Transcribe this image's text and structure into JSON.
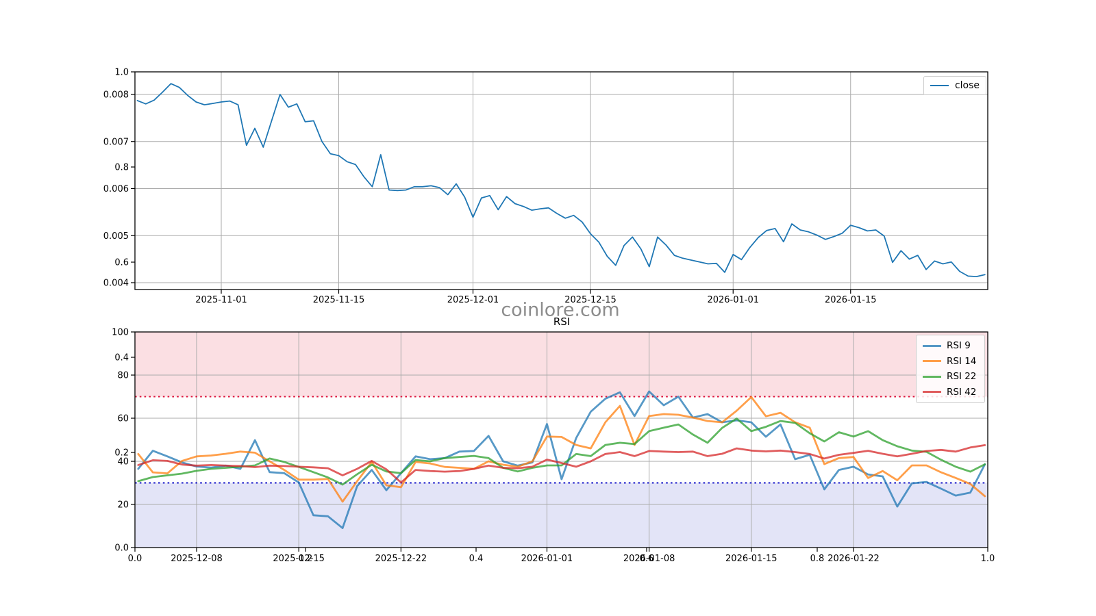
{
  "watermark": "coinlore.com",
  "colors": {
    "close_line": "#1f77b4",
    "rsi9_line": "#1f77b4",
    "rsi14_line": "#ff7f0e",
    "rsi22_line": "#2ca02c",
    "rsi42_line": "#d62728",
    "grid": "#ababab",
    "spine": "#000000",
    "overbought_dotted_line": "#dc143c",
    "oversold_dotted_line": "#1414c8",
    "overbought_band": "#fbdfe3",
    "oversold_band": "#e3e4f7",
    "watermark_text": "#8c8c8c"
  },
  "figure_axis": {
    "y_tick_labels": [
      "1.0",
      "0.8",
      "0.6",
      "0.4",
      "0.2",
      "0.0"
    ],
    "x_tick_labels": [
      "0.0",
      "0.2",
      "0.4",
      "0.6",
      "0.8",
      "1.0"
    ]
  },
  "price_chart": {
    "legend_label": "close",
    "y_tick_labels": [
      "0.008",
      "0.007",
      "0.006",
      "0.005",
      "0.004"
    ],
    "x_tick_labels": [
      "2025-11-01",
      "2025-11-15",
      "2025-12-01",
      "2025-12-15",
      "2026-01-01",
      "2026-01-15"
    ]
  },
  "rsi_chart": {
    "title": "RSI",
    "legend_labels": [
      "RSI 9",
      "RSI 14",
      "RSI 22",
      "RSI 42"
    ],
    "y_tick_labels": [
      "100",
      "80",
      "60",
      "40",
      "20"
    ],
    "x_tick_labels": [
      "2025-12-08",
      "2025-12-15",
      "2025-12-22",
      "2026-01-01",
      "2026-01-08",
      "2026-01-15",
      "2026-01-22"
    ],
    "overbought_level": 70,
    "oversold_level": 30
  },
  "chart_data": [
    {
      "type": "line",
      "title": "",
      "ylabel": "",
      "xlabel": "",
      "legend_position": "upper right",
      "grid": true,
      "ylim": [
        0.00386,
        0.00848
      ],
      "y_ticks": [
        0.008,
        0.007,
        0.006,
        0.005,
        0.004
      ],
      "x_ticks": [
        "2025-11-01",
        "2025-11-15",
        "2025-12-01",
        "2025-12-15",
        "2026-01-01",
        "2026-01-15"
      ],
      "x": [
        "2025-10-22",
        "2025-10-23",
        "2025-10-24",
        "2025-10-25",
        "2025-10-26",
        "2025-10-27",
        "2025-10-28",
        "2025-10-29",
        "2025-10-30",
        "2025-10-31",
        "2025-11-01",
        "2025-11-02",
        "2025-11-03",
        "2025-11-04",
        "2025-11-05",
        "2025-11-06",
        "2025-11-07",
        "2025-11-08",
        "2025-11-09",
        "2025-11-10",
        "2025-11-11",
        "2025-11-12",
        "2025-11-13",
        "2025-11-14",
        "2025-11-15",
        "2025-11-16",
        "2025-11-17",
        "2025-11-18",
        "2025-11-19",
        "2025-11-20",
        "2025-11-21",
        "2025-11-22",
        "2025-11-23",
        "2025-11-24",
        "2025-11-25",
        "2025-11-26",
        "2025-11-27",
        "2025-11-28",
        "2025-11-29",
        "2025-11-30",
        "2025-12-01",
        "2025-12-02",
        "2025-12-03",
        "2025-12-04",
        "2025-12-05",
        "2025-12-06",
        "2025-12-07",
        "2025-12-08",
        "2025-12-09",
        "2025-12-10",
        "2025-12-11",
        "2025-12-12",
        "2025-12-13",
        "2025-12-14",
        "2025-12-15",
        "2025-12-16",
        "2025-12-17",
        "2025-12-18",
        "2025-12-19",
        "2025-12-20",
        "2025-12-21",
        "2025-12-22",
        "2025-12-23",
        "2025-12-24",
        "2025-12-25",
        "2025-12-26",
        "2025-12-27",
        "2025-12-28",
        "2025-12-29",
        "2025-12-30",
        "2025-12-31",
        "2026-01-01",
        "2026-01-02",
        "2026-01-03",
        "2026-01-04",
        "2026-01-05",
        "2026-01-06",
        "2026-01-07",
        "2026-01-08",
        "2026-01-09",
        "2026-01-10",
        "2026-01-11",
        "2026-01-12",
        "2026-01-13",
        "2026-01-14",
        "2026-01-15",
        "2026-01-16",
        "2026-01-17",
        "2026-01-18",
        "2026-01-19",
        "2026-01-20",
        "2026-01-21",
        "2026-01-22",
        "2026-01-23",
        "2026-01-24",
        "2026-01-25",
        "2026-01-26",
        "2026-01-27",
        "2026-01-28",
        "2026-01-29",
        "2026-01-30",
        "2026-01-31"
      ],
      "series": [
        {
          "name": "close",
          "color": "#1f77b4",
          "values": [
            0.00787,
            0.0078,
            0.00788,
            0.00805,
            0.00823,
            0.00815,
            0.00798,
            0.00784,
            0.00778,
            0.00781,
            0.00784,
            0.00786,
            0.00778,
            0.00692,
            0.00728,
            0.00688,
            0.00744,
            0.008,
            0.00773,
            0.0078,
            0.00742,
            0.00744,
            0.007,
            0.00674,
            0.0067,
            0.00657,
            0.00651,
            0.00625,
            0.00604,
            0.00672,
            0.00597,
            0.00596,
            0.00597,
            0.00604,
            0.00604,
            0.00606,
            0.00602,
            0.00587,
            0.0061,
            0.00582,
            0.00539,
            0.0058,
            0.00585,
            0.00555,
            0.00583,
            0.00568,
            0.00562,
            0.00554,
            0.00557,
            0.00559,
            0.00547,
            0.00537,
            0.00543,
            0.00529,
            0.00504,
            0.00486,
            0.00456,
            0.00437,
            0.00479,
            0.00497,
            0.00472,
            0.00434,
            0.00497,
            0.0048,
            0.00458,
            0.00452,
            0.00448,
            0.00444,
            0.0044,
            0.00441,
            0.00422,
            0.0046,
            0.00449,
            0.00475,
            0.00496,
            0.00511,
            0.00515,
            0.00487,
            0.00525,
            0.00512,
            0.00508,
            0.00501,
            0.00492,
            0.00498,
            0.00505,
            0.00522,
            0.00517,
            0.0051,
            0.00512,
            0.00499,
            0.00443,
            0.00468,
            0.0045,
            0.00458,
            0.00428,
            0.00446,
            0.0044,
            0.00444,
            0.00424,
            0.00414,
            0.00413,
            0.00417
          ]
        }
      ]
    },
    {
      "type": "line",
      "title": "RSI",
      "ylabel": "",
      "xlabel": "",
      "legend_position": "upper right",
      "grid": true,
      "ylim": [
        0,
        100
      ],
      "y_ticks": [
        100,
        80,
        60,
        40,
        20,
        0
      ],
      "x_ticks": [
        "2025-12-08",
        "2025-12-15",
        "2025-12-22",
        "2026-01-01",
        "2026-01-08",
        "2026-01-15",
        "2026-01-22"
      ],
      "overbought_level": 70,
      "oversold_level": 30,
      "x": [
        "2025-12-04",
        "2025-12-05",
        "2025-12-06",
        "2025-12-07",
        "2025-12-08",
        "2025-12-09",
        "2025-12-10",
        "2025-12-11",
        "2025-12-12",
        "2025-12-13",
        "2025-12-14",
        "2025-12-15",
        "2025-12-16",
        "2025-12-17",
        "2025-12-18",
        "2025-12-19",
        "2025-12-20",
        "2025-12-21",
        "2025-12-22",
        "2025-12-23",
        "2025-12-24",
        "2025-12-25",
        "2025-12-26",
        "2025-12-27",
        "2025-12-28",
        "2025-12-29",
        "2025-12-30",
        "2025-12-31",
        "2026-01-01",
        "2026-01-02",
        "2026-01-03",
        "2026-01-04",
        "2026-01-05",
        "2026-01-06",
        "2026-01-07",
        "2026-01-08",
        "2026-01-09",
        "2026-01-10",
        "2026-01-11",
        "2026-01-12",
        "2026-01-13",
        "2026-01-14",
        "2026-01-15",
        "2026-01-16",
        "2026-01-17",
        "2026-01-18",
        "2026-01-19",
        "2026-01-20",
        "2026-01-21",
        "2026-01-22",
        "2026-01-23",
        "2026-01-24",
        "2026-01-25",
        "2026-01-26",
        "2026-01-27",
        "2026-01-28",
        "2026-01-29",
        "2026-01-30",
        "2026-01-31"
      ],
      "series": [
        {
          "name": "RSI 9",
          "color": "#1f77b4",
          "values": [
            36.5,
            44.9,
            42.3,
            39.5,
            37.6,
            37.1,
            38.0,
            36.5,
            49.8,
            35.0,
            34.5,
            30.2,
            15.0,
            14.5,
            9.0,
            28.5,
            36.0,
            26.6,
            34.5,
            42.3,
            41.0,
            41.5,
            44.5,
            44.8,
            51.8,
            40.0,
            38.0,
            39.5,
            57.3,
            31.7,
            50.8,
            63.0,
            69.0,
            72.0,
            61.0,
            72.4,
            66.0,
            70.0,
            60.3,
            61.9,
            58.1,
            59.0,
            58.1,
            51.4,
            57.1,
            41.0,
            43.0,
            27.0,
            36.0,
            37.5,
            33.9,
            33.0,
            19.0,
            29.8,
            30.4,
            27.3,
            24.1,
            25.5,
            38.6
          ]
        },
        {
          "name": "RSI 14",
          "color": "#ff7f0e",
          "values": [
            43.4,
            34.9,
            34.4,
            40.2,
            42.3,
            42.7,
            43.5,
            44.5,
            44.0,
            40.0,
            36.0,
            31.5,
            31.5,
            31.8,
            21.3,
            30.8,
            39.7,
            28.9,
            28.0,
            39.7,
            39.0,
            37.4,
            37.0,
            36.5,
            40.0,
            38.4,
            37.5,
            40.0,
            51.5,
            51.3,
            47.6,
            46.0,
            58.1,
            65.7,
            47.6,
            61.0,
            61.9,
            61.6,
            60.3,
            58.7,
            58.1,
            63.5,
            69.8,
            60.9,
            62.5,
            58.1,
            55.6,
            38.7,
            41.5,
            42.0,
            32.3,
            35.5,
            31.2,
            38.1,
            38.1,
            34.9,
            32.3,
            29.5,
            23.8
          ]
        },
        {
          "name": "RSI 22",
          "color": "#2ca02c",
          "values": [
            30.8,
            32.7,
            33.5,
            34.3,
            35.6,
            36.5,
            37.0,
            37.5,
            38.1,
            41.3,
            39.7,
            37.4,
            35.0,
            32.5,
            29.2,
            34.0,
            38.4,
            35.3,
            34.5,
            40.6,
            40.0,
            41.5,
            42.0,
            42.5,
            41.5,
            37.0,
            35.3,
            37.0,
            38.1,
            38.1,
            43.4,
            42.4,
            47.6,
            48.6,
            48.0,
            54.0,
            55.6,
            57.1,
            52.4,
            48.6,
            55.5,
            59.8,
            54.0,
            56.0,
            58.7,
            57.8,
            53.0,
            49.2,
            53.5,
            51.5,
            54.0,
            49.8,
            47.0,
            45.0,
            44.4,
            40.7,
            37.5,
            35.2,
            38.6
          ]
        },
        {
          "name": "RSI 42",
          "color": "#d62728",
          "values": [
            38.3,
            40.5,
            40.2,
            38.5,
            38.0,
            38.3,
            38.0,
            37.8,
            37.3,
            38.0,
            37.8,
            37.5,
            37.2,
            36.8,
            33.5,
            36.5,
            40.2,
            36.3,
            30.2,
            36.0,
            35.5,
            35.2,
            35.5,
            36.5,
            38.0,
            37.0,
            36.8,
            37.5,
            40.8,
            39.2,
            37.5,
            40.0,
            43.4,
            44.3,
            42.4,
            44.8,
            44.5,
            44.3,
            44.5,
            42.4,
            43.5,
            46.0,
            45.0,
            44.6,
            45.0,
            44.3,
            43.4,
            41.3,
            43.0,
            43.9,
            44.9,
            43.5,
            42.3,
            43.5,
            44.8,
            45.3,
            44.5,
            46.4,
            47.5
          ]
        }
      ]
    }
  ]
}
